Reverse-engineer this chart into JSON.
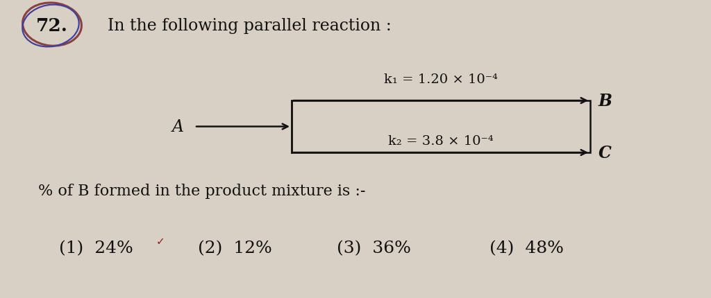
{
  "bg_color": "#d8d0c4",
  "question_number": "72.",
  "title_text": "In the following parallel reaction :",
  "k1_label": "k₁ = 1.20 × 10⁻⁴",
  "k2_label": "k₂ = 3.8 × 10⁻⁴",
  "reactant": "A",
  "product1": "B",
  "product2": "C",
  "question_text": "% of B formed in the product mixture is :-",
  "options": [
    "(1)  24%",
    "(2)  12%",
    "(3)  36%",
    "(4)  48%"
  ],
  "correct_option": 0,
  "circle_color_outer": "#8B4040",
  "circle_color_inner": "#4040A0",
  "text_color": "#111111",
  "font_size_title": 17,
  "font_size_question": 16,
  "font_size_options": 18,
  "font_size_k_label": 14,
  "font_size_qnum": 19,
  "font_size_abc": 17
}
